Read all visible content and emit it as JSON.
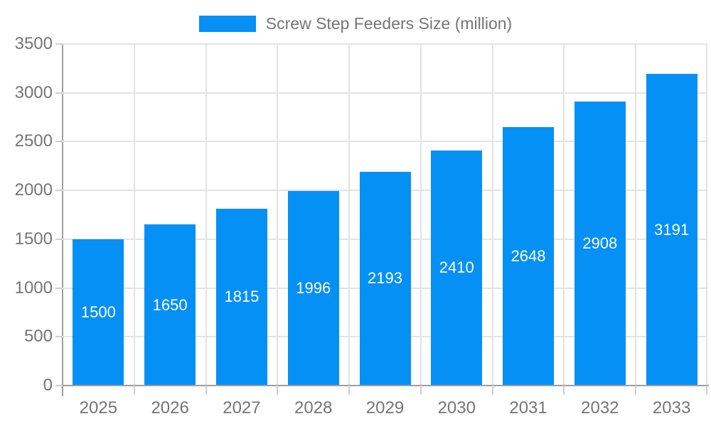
{
  "legend": {
    "label": "Screw Step Feeders Size (million)"
  },
  "colors": {
    "bar": "#0590f5",
    "bar_label_text": "#ffffff",
    "axis_text": "#757575",
    "legend_text": "#757575",
    "gridline": "#e3e3e3",
    "axis_line": "#9e9e9e",
    "tick": "#cfcfcf",
    "background": "#ffffff"
  },
  "chart_data": {
    "type": "bar",
    "title": "Screw Step Feeders Size (million)",
    "series_name": "Screw Step Feeders Size (million)",
    "categories": [
      "2025",
      "2026",
      "2027",
      "2028",
      "2029",
      "2030",
      "2031",
      "2032",
      "2033"
    ],
    "values": [
      1500,
      1650,
      1815,
      1996,
      2193,
      2410,
      2648,
      2908,
      3191
    ],
    "bar_value_labels": [
      "1500",
      "1650",
      "1815",
      "1996",
      "2193",
      "2410",
      "2648",
      "2908",
      "3191"
    ],
    "xlabel": "",
    "ylabel": "",
    "ylim": [
      0,
      3500
    ],
    "yticks": [
      0,
      500,
      1000,
      1500,
      2000,
      2500,
      3000,
      3500
    ],
    "grid": true,
    "legend_position": "top",
    "value_labels_inside_bars": true
  }
}
